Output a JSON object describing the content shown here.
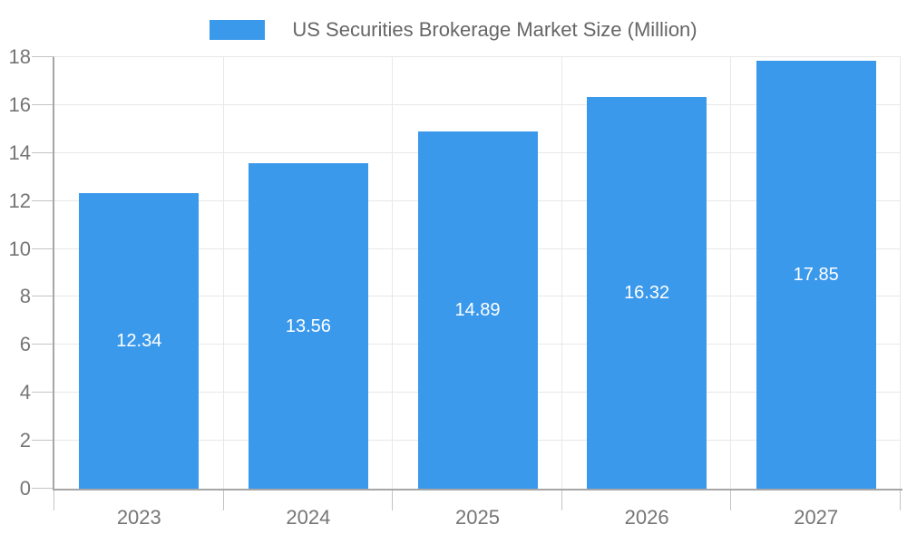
{
  "chart_data": {
    "type": "bar",
    "title": "US Securities Brokerage Market Size (Million)",
    "legend_label": "US Securities Brokerage Market Size (Million)",
    "legend_position": "top-center",
    "categories": [
      "2023",
      "2024",
      "2025",
      "2026",
      "2027"
    ],
    "values": [
      12.34,
      13.56,
      14.89,
      16.32,
      17.85
    ],
    "data_labels": [
      "12.34",
      "13.56",
      "14.89",
      "16.32",
      "17.85"
    ],
    "series": [
      {
        "name": "US Securities Brokerage Market Size (Million)",
        "values": [
          12.34,
          13.56,
          14.89,
          16.32,
          17.85
        ]
      }
    ],
    "xlabel": "",
    "ylabel": "",
    "ylim": [
      0,
      18
    ],
    "yticks": [
      0,
      2,
      4,
      6,
      8,
      10,
      12,
      14,
      16,
      18
    ],
    "grid": true,
    "colors": {
      "bar": "#3B99EC",
      "bar_label": "#FFFFFF",
      "axis_line": "#A6A6A6",
      "grid_line": "#E8E8E8",
      "tick_line": "#C4C4C4",
      "tick_label": "#757575",
      "legend_text": "#666666",
      "background": "#FFFFFF"
    }
  }
}
